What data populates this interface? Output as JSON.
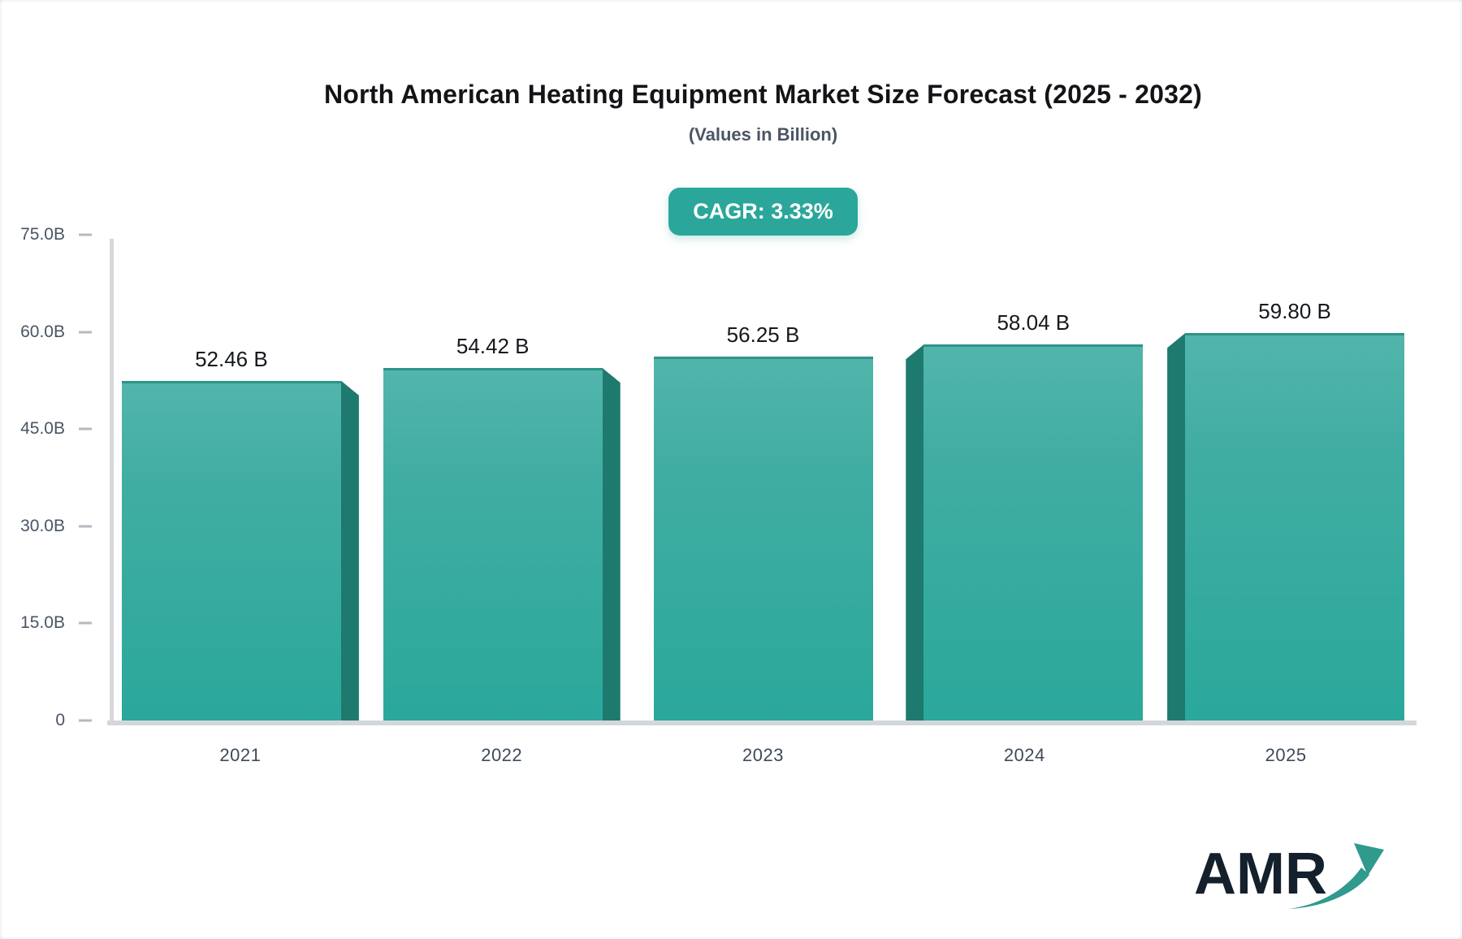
{
  "title": "North American Heating Equipment Market Size Forecast (2025 - 2032)",
  "subtitle": "(Values in Billion)",
  "badge": {
    "label": "CAGR: 3.33%"
  },
  "chart_data": {
    "type": "bar",
    "title": "North American Heating Equipment Market Size Forecast (2025 - 2032)",
    "subtitle": "(Values in Billion)",
    "annotation": "CAGR: 3.33%",
    "categories": [
      "2021",
      "2022",
      "2023",
      "2024",
      "2025"
    ],
    "values": [
      52.46,
      54.42,
      56.25,
      58.04,
      59.8
    ],
    "value_labels": [
      "52.46 B",
      "54.42 B",
      "56.25 B",
      "58.04 B",
      "59.80 B"
    ],
    "unit": "Billion",
    "xlabel": "",
    "ylabel": "",
    "ylim": [
      0,
      75
    ],
    "ytick_values": [
      75,
      60,
      45,
      30,
      15,
      0
    ],
    "ytick_labels": [
      "75.0B",
      "60.0B",
      "45.0B",
      "30.0B",
      "15.0B",
      "0"
    ],
    "grid": false,
    "legend": false,
    "bar_color_top": "#52b5ab",
    "bar_color_bottom": "#2aa89b",
    "bar_side_color": "#1e796f"
  },
  "logo": {
    "text": "AMR"
  },
  "colors": {
    "accent": "#2aa79a",
    "axis_line": "#d3d7dc",
    "tick_text": "#4a5563",
    "title_text": "#121417",
    "logo_text": "#14202c",
    "logo_arrow": "#2f9a8d"
  }
}
